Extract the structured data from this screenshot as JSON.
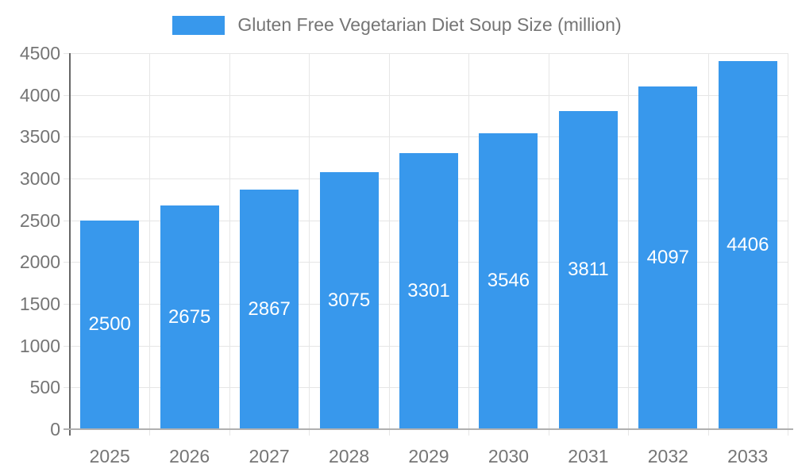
{
  "chart_data": {
    "type": "bar",
    "title": "Gluten Free Vegetarian Diet Soup Size (million)",
    "categories": [
      "2025",
      "2026",
      "2027",
      "2028",
      "2029",
      "2030",
      "2031",
      "2032",
      "2033"
    ],
    "values": [
      2500,
      2675,
      2867,
      3075,
      3301,
      3546,
      3811,
      4097,
      4406
    ],
    "xlabel": "",
    "ylabel": "",
    "ylim": [
      0,
      4500
    ],
    "ytick_step": 500,
    "yticks": [
      0,
      500,
      1000,
      1500,
      2000,
      2500,
      3000,
      3500,
      4000,
      4500
    ],
    "grid": true,
    "legend_position": "top",
    "bar_labels_inside": true,
    "colors": {
      "bar": "#3898ec",
      "bar_label": "#ffffff",
      "axis_text": "#757575",
      "gridline": "#e6e6e6",
      "y_axis_line": "#666666",
      "baseline": "#b0b0b0",
      "background": "#ffffff"
    }
  }
}
